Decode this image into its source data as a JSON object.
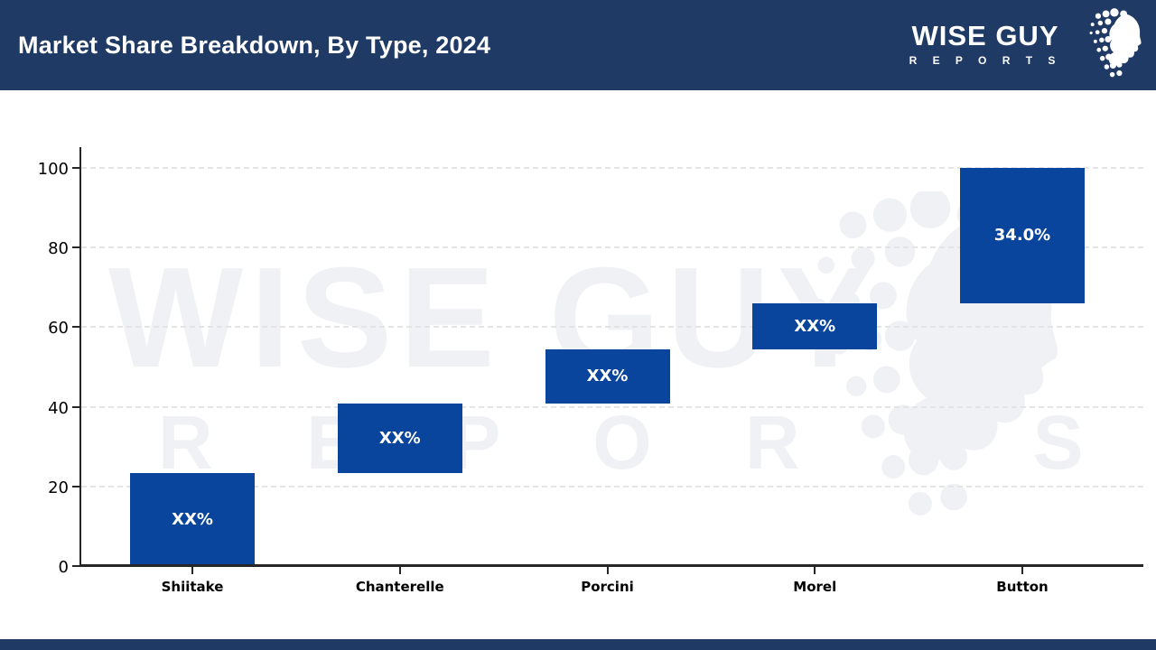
{
  "header": {
    "title": "Market Share Breakdown, By Type, 2024",
    "logo": {
      "line1": "WISE GUY",
      "line2": "R E P O R T S"
    }
  },
  "watermark": {
    "line1": "WISE GUY",
    "line2": "R E P O R T S"
  },
  "chart_data": {
    "type": "bar",
    "subtype": "floating-waterfall",
    "title": "Market Share Breakdown, By Type, 2024",
    "categories": [
      "Shiitake",
      "Chanterelle",
      "Porcini",
      "Morel",
      "Button"
    ],
    "series": [
      {
        "name": "Market share (%)",
        "segments": [
          {
            "category": "Shiitake",
            "start": 0,
            "end": 23.3,
            "label": "XX%"
          },
          {
            "category": "Chanterelle",
            "start": 23.3,
            "end": 40.8,
            "label": "XX%"
          },
          {
            "category": "Porcini",
            "start": 40.8,
            "end": 54.5,
            "label": "XX%"
          },
          {
            "category": "Morel",
            "start": 54.5,
            "end": 66.0,
            "label": "XX%"
          },
          {
            "category": "Button",
            "start": 66.0,
            "end": 100.0,
            "label": "34.0%"
          }
        ]
      }
    ],
    "xlabel": "",
    "ylabel": "",
    "ylim": [
      0,
      105
    ],
    "yticks": [
      0,
      20,
      40,
      60,
      80,
      100
    ],
    "grid": "horizontal-dashed",
    "legend": "none",
    "bar_color": "#09459c"
  },
  "colors": {
    "header_bg": "#203a66",
    "footer_bg": "#203a66",
    "bar": "#09459c",
    "axis": "#262626",
    "gridline": "#e4e4e4",
    "watermark": "#f0f1f4",
    "bar_label_text": "#ffffff"
  }
}
